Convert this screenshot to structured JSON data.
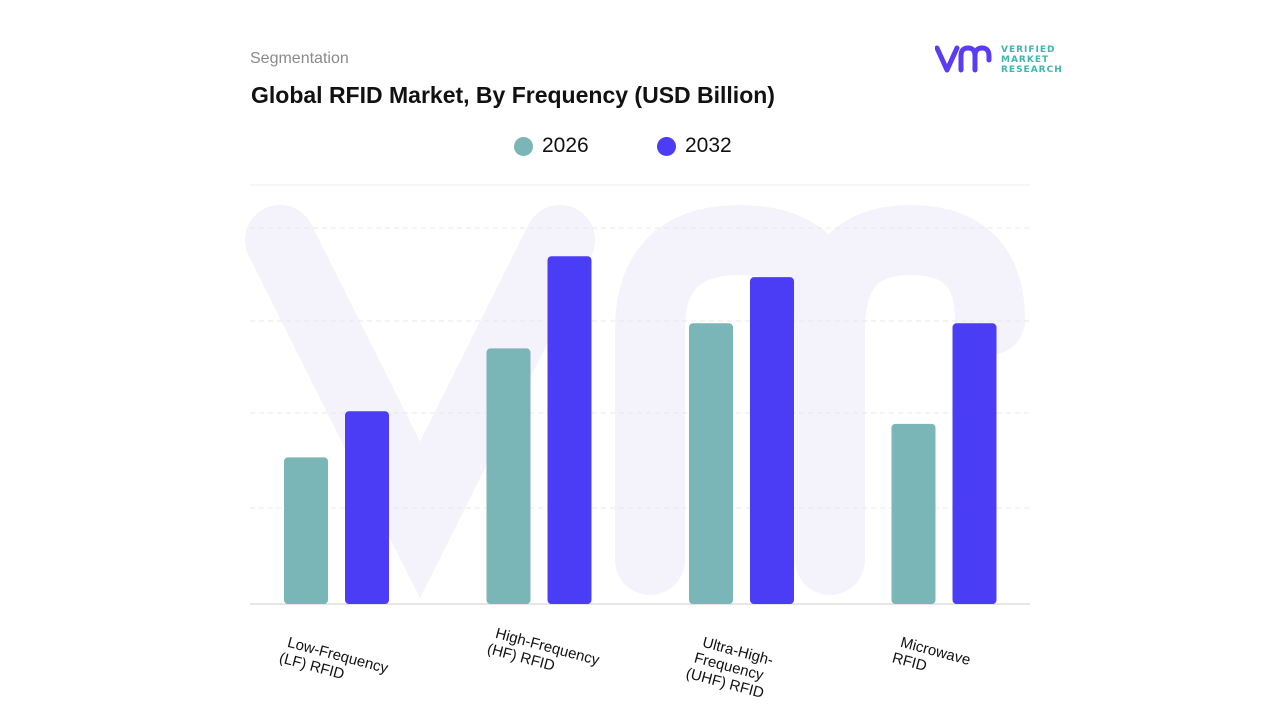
{
  "header": {
    "eyebrow": "Segmentation",
    "title": "Global RFID Market, By Frequency (USD Billion)"
  },
  "logo": {
    "line1": "VERIFIED",
    "line2": "MARKET",
    "line3": "RESEARCH",
    "mark_color": "#5b3cf2",
    "text_color": "#3fb5ad"
  },
  "chart_data": {
    "type": "bar",
    "categories": [
      [
        "Low-Frequency",
        "(LF) RFID"
      ],
      [
        "High-Frequency",
        "(HF) RFID"
      ],
      [
        "Ultra-High-",
        "Frequency",
        "(UHF) RFID"
      ],
      [
        "Microwave",
        "RFID"
      ]
    ],
    "series": [
      {
        "name": "2026",
        "color": "#7ab5b8",
        "values": [
          3.5,
          6.1,
          6.7,
          4.3
        ]
      },
      {
        "name": "2032",
        "color": "#4b3cf5",
        "values": [
          4.6,
          8.3,
          7.8,
          6.7
        ]
      }
    ],
    "ylim": [
      0,
      10
    ],
    "grid": true,
    "legend": "top-center"
  }
}
